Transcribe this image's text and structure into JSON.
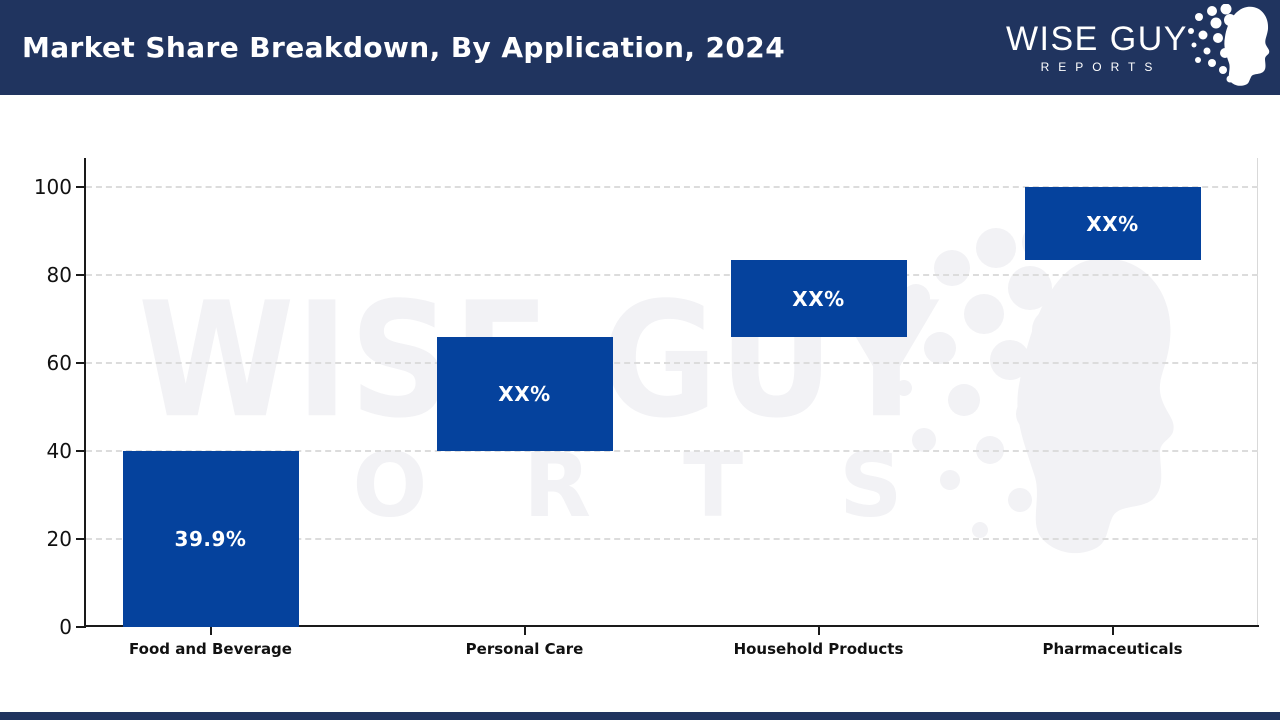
{
  "header": {
    "title": "Market Share Breakdown, By Application, 2024",
    "logo": {
      "line1": "WISE GUY",
      "line2": "REPORTS"
    }
  },
  "watermark": {
    "line1": "WISE GUY",
    "line2": "PORTS"
  },
  "chart_data": {
    "type": "bar",
    "subtype": "waterfall",
    "title": "Market Share Breakdown, By Application, 2024",
    "categories": [
      "Food and Beverage",
      "Personal Care",
      "Household Products",
      "Pharmaceuticals"
    ],
    "segments": [
      {
        "start": 0,
        "end": 39.9
      },
      {
        "start": 39.9,
        "end": 65.9
      },
      {
        "start": 65.9,
        "end": 83.4
      },
      {
        "start": 83.4,
        "end": 100
      }
    ],
    "bar_labels": [
      "39.9%",
      "XX%",
      "XX%",
      "XX%"
    ],
    "xlabel": "",
    "ylabel": "",
    "ylim": [
      0,
      100
    ],
    "yticks": [
      0,
      20,
      40,
      60,
      80,
      100
    ],
    "grid": "horizontal-dashed",
    "legend": "none",
    "colors": {
      "bar": "#05429d",
      "bar_label": "#ffffff",
      "axis": "#1a1a1a",
      "gridline": "#dcdcdc",
      "header_bg": "#20345f",
      "watermark": "#f2f2f5",
      "tick_text": "#111111"
    }
  }
}
